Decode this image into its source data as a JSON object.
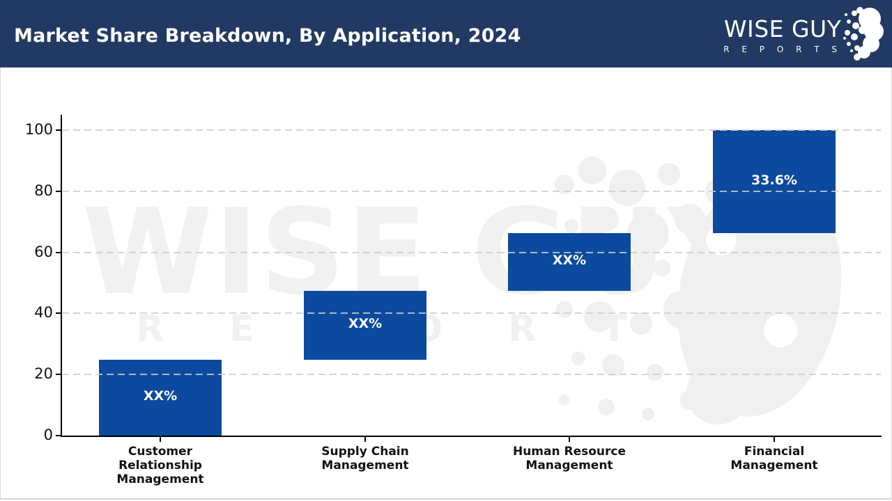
{
  "header": {
    "title": "Market Share Breakdown, By Application, 2024",
    "logo_text": "WISE GUY",
    "logo_subtext": "R E P O R T S"
  },
  "watermark": {
    "text": "WISE GUY",
    "subtext": "R E P O R T S"
  },
  "colors": {
    "header_bg": "#223963",
    "bar": "#0b4a9e",
    "bar_label": "#ffffff",
    "grid": "#cdcdcd",
    "axis": "#000000",
    "watermark": "#f1f1f1",
    "frame_border": "#d9d9d9"
  },
  "chart_data": {
    "type": "bar",
    "subtype": "floating-waterfall-bars",
    "title": "Market Share Breakdown, By Application, 2024",
    "ylim": [
      0,
      100
    ],
    "yticks": [
      0,
      20,
      40,
      60,
      80,
      100
    ],
    "grid": "horizontal-dashed",
    "legend": "none",
    "categories": [
      "Customer Relationship Management",
      "Supply Chain Management",
      "Human Resource Management",
      "Financial Management"
    ],
    "category_lines": [
      [
        "Customer",
        "Relationship",
        "Management"
      ],
      [
        "Supply Chain",
        "Management"
      ],
      [
        "Human Resource",
        "Management"
      ],
      [
        "Financial",
        "Management"
      ]
    ],
    "segments": [
      {
        "category": "Customer Relationship Management",
        "start": 0,
        "end": 24.9,
        "label": "XX%"
      },
      {
        "category": "Supply Chain Management",
        "start": 24.9,
        "end": 47.4,
        "label": "XX%"
      },
      {
        "category": "Human Resource Management",
        "start": 47.4,
        "end": 66.4,
        "label": "XX%"
      },
      {
        "category": "Financial Management",
        "start": 66.4,
        "end": 100,
        "label": "33.6%"
      }
    ]
  }
}
